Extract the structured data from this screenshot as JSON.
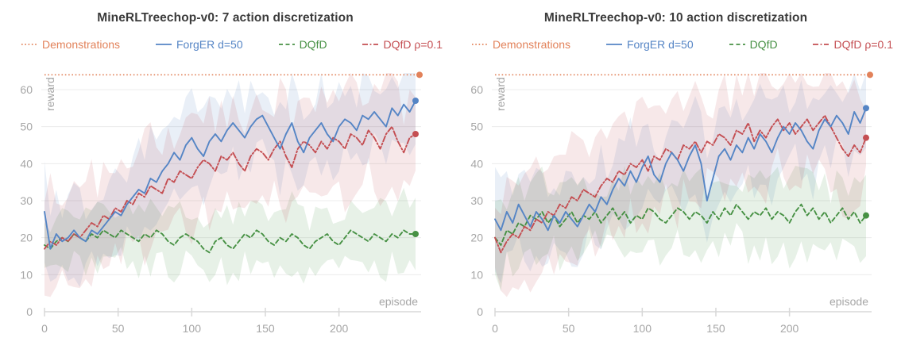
{
  "figure": {
    "background": "#ffffff"
  },
  "chart_data": [
    {
      "type": "line",
      "title": "MineRLTreechop-v0: 7 action discretization",
      "xlabel": "episode",
      "ylabel": "reward",
      "xticks": [
        0,
        50,
        100,
        150,
        200
      ],
      "yticks": [
        0,
        10,
        20,
        30,
        40,
        50,
        60
      ],
      "xlim": [
        0,
        252
      ],
      "ylim": [
        0,
        67
      ],
      "grid": "horizontal",
      "legend_position": "top",
      "x": [
        0,
        4,
        8,
        12,
        16,
        20,
        24,
        28,
        32,
        36,
        40,
        44,
        48,
        52,
        56,
        60,
        64,
        68,
        72,
        76,
        80,
        84,
        88,
        92,
        96,
        100,
        104,
        108,
        112,
        116,
        120,
        124,
        128,
        132,
        136,
        140,
        144,
        148,
        152,
        156,
        160,
        164,
        168,
        172,
        176,
        180,
        184,
        188,
        192,
        196,
        200,
        204,
        208,
        212,
        216,
        220,
        224,
        228,
        232,
        236,
        240,
        244,
        248,
        252
      ],
      "series": [
        {
          "name": "Demonstrations",
          "type": "hline",
          "value": 64,
          "color": "#e2825a",
          "dash": "dotted"
        },
        {
          "name": "ForgER d=50",
          "type": "line",
          "color": "#5585c5",
          "dash": "solid",
          "band": 10,
          "values": [
            27,
            17,
            21,
            19,
            20,
            22,
            20,
            19,
            22,
            21,
            23,
            25,
            27,
            26,
            29,
            31,
            33,
            32,
            36,
            35,
            38,
            40,
            43,
            41,
            45,
            47,
            44,
            42,
            46,
            48,
            46,
            49,
            51,
            49,
            47,
            50,
            52,
            53,
            50,
            47,
            44,
            48,
            51,
            46,
            43,
            47,
            49,
            51,
            48,
            46,
            50,
            52,
            51,
            49,
            53,
            52,
            54,
            52,
            50,
            55,
            53,
            56,
            54,
            57
          ]
        },
        {
          "name": "DQfD",
          "type": "line",
          "color": "#479144",
          "dash": "dashed",
          "band": 8,
          "values": [
            18,
            17,
            19,
            20,
            19,
            21,
            20,
            19,
            21,
            20,
            22,
            21,
            20,
            22,
            21,
            20,
            19,
            21,
            20,
            22,
            21,
            19,
            18,
            20,
            21,
            20,
            19,
            17,
            16,
            19,
            20,
            18,
            17,
            19,
            21,
            20,
            22,
            21,
            19,
            18,
            20,
            19,
            21,
            20,
            18,
            17,
            19,
            20,
            21,
            19,
            18,
            20,
            22,
            21,
            20,
            19,
            21,
            20,
            19,
            21,
            20,
            22,
            21,
            21
          ]
        },
        {
          "name": "DQfD ρ=0.1",
          "type": "line",
          "color": "#c44e52",
          "dash": "dashdot",
          "band": 13,
          "values": [
            17,
            19,
            18,
            20,
            19,
            21,
            20,
            22,
            24,
            23,
            26,
            25,
            28,
            27,
            30,
            29,
            32,
            31,
            34,
            33,
            32,
            36,
            35,
            38,
            37,
            36,
            39,
            41,
            40,
            38,
            42,
            41,
            43,
            40,
            38,
            42,
            44,
            43,
            41,
            44,
            46,
            42,
            39,
            44,
            46,
            45,
            43,
            46,
            44,
            47,
            46,
            44,
            48,
            47,
            45,
            49,
            47,
            44,
            48,
            50,
            46,
            43,
            47,
            48
          ]
        }
      ]
    },
    {
      "type": "line",
      "title": "MineRLTreechop-v0: 10 action discretization",
      "xlabel": "episode",
      "ylabel": "reward",
      "xticks": [
        0,
        50,
        100,
        150,
        200
      ],
      "yticks": [
        0,
        10,
        20,
        30,
        40,
        50,
        60
      ],
      "xlim": [
        0,
        252
      ],
      "ylim": [
        0,
        67
      ],
      "grid": "horizontal",
      "legend_position": "top",
      "x": [
        0,
        4,
        8,
        12,
        16,
        20,
        24,
        28,
        32,
        36,
        40,
        44,
        48,
        52,
        56,
        60,
        64,
        68,
        72,
        76,
        80,
        84,
        88,
        92,
        96,
        100,
        104,
        108,
        112,
        116,
        120,
        124,
        128,
        132,
        136,
        140,
        144,
        148,
        152,
        156,
        160,
        164,
        168,
        172,
        176,
        180,
        184,
        188,
        192,
        196,
        200,
        204,
        208,
        212,
        216,
        220,
        224,
        228,
        232,
        236,
        240,
        244,
        248,
        252
      ],
      "series": [
        {
          "name": "Demonstrations",
          "type": "hline",
          "value": 64,
          "color": "#e2825a",
          "dash": "dotted"
        },
        {
          "name": "ForgER d=50",
          "type": "line",
          "color": "#5585c5",
          "dash": "solid",
          "band": 10,
          "values": [
            25,
            22,
            27,
            24,
            29,
            26,
            23,
            27,
            25,
            22,
            26,
            24,
            27,
            25,
            23,
            26,
            29,
            27,
            31,
            29,
            33,
            36,
            34,
            38,
            35,
            39,
            42,
            37,
            35,
            40,
            43,
            41,
            38,
            42,
            45,
            40,
            30,
            36,
            42,
            44,
            41,
            45,
            43,
            47,
            44,
            48,
            46,
            43,
            47,
            50,
            48,
            51,
            49,
            46,
            44,
            49,
            52,
            50,
            53,
            51,
            48,
            54,
            51,
            55
          ]
        },
        {
          "name": "DQfD",
          "type": "line",
          "color": "#479144",
          "dash": "dashed",
          "band": 9,
          "values": [
            20,
            18,
            22,
            21,
            24,
            23,
            26,
            25,
            27,
            24,
            26,
            23,
            25,
            27,
            24,
            26,
            25,
            27,
            24,
            26,
            28,
            25,
            27,
            24,
            26,
            25,
            28,
            27,
            25,
            24,
            26,
            28,
            27,
            25,
            27,
            26,
            24,
            27,
            25,
            28,
            26,
            29,
            27,
            25,
            27,
            26,
            28,
            25,
            27,
            26,
            24,
            27,
            29,
            26,
            28,
            25,
            27,
            24,
            26,
            28,
            25,
            27,
            24,
            26
          ]
        },
        {
          "name": "DQfD ρ=0.1",
          "type": "line",
          "color": "#c44e52",
          "dash": "dashdot",
          "band": 13,
          "values": [
            20,
            16,
            19,
            21,
            20,
            23,
            22,
            25,
            24,
            27,
            26,
            29,
            28,
            31,
            30,
            33,
            32,
            31,
            34,
            36,
            35,
            38,
            37,
            40,
            39,
            41,
            38,
            42,
            41,
            44,
            43,
            41,
            45,
            44,
            46,
            43,
            46,
            45,
            48,
            47,
            45,
            49,
            48,
            51,
            46,
            49,
            47,
            50,
            52,
            49,
            51,
            48,
            50,
            52,
            49,
            51,
            53,
            50,
            47,
            44,
            42,
            45,
            43,
            47
          ]
        }
      ]
    }
  ]
}
